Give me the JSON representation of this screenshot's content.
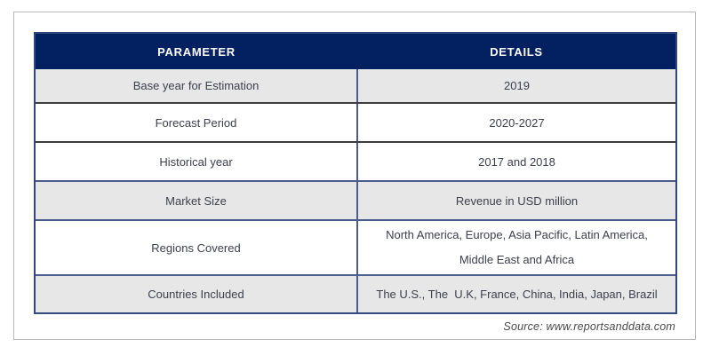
{
  "chart_data": {
    "type": "table",
    "columns": [
      "PARAMETER",
      "DETAILS"
    ],
    "rows": [
      [
        "Base year for Estimation",
        "2019"
      ],
      [
        "Forecast Period",
        "2020-2027"
      ],
      [
        "Historical year",
        "2017 and 2018"
      ],
      [
        "Market Size",
        "Revenue in USD million"
      ],
      [
        "Regions Covered",
        "North America, Europe, Asia Pacific, Latin America, Middle East and Africa"
      ],
      [
        "Countries Included",
        "The U.S., The  U.K, France, China, India, Japan, Brazil"
      ]
    ]
  },
  "source": "Source: www.reportsanddata.com",
  "colors": {
    "header_bg": "#032160",
    "header_text": "#ffffff",
    "shaded_row_bg": "#e7e7e7",
    "table_border_blue": "#4a5d8c",
    "row_border_dark": "#3d3d3d",
    "outer_frame_border": "#b9b9b9",
    "body_text": "#3c3f4c",
    "source_text": "#4a4a4a"
  }
}
